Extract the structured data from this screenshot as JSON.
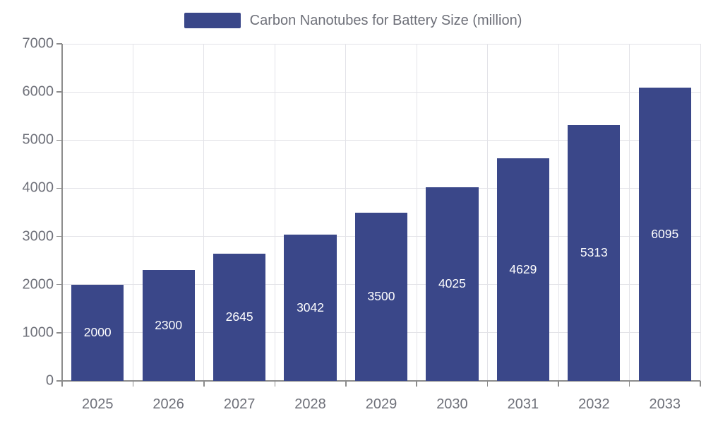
{
  "chart_data": {
    "type": "bar",
    "title": "Carbon Nanotubes for Battery Size (million)",
    "legend": {
      "position": "top-center",
      "entries": [
        "Carbon Nanotubes for Battery Size (million)"
      ]
    },
    "categories": [
      "2025",
      "2026",
      "2027",
      "2028",
      "2029",
      "2030",
      "2031",
      "2032",
      "2033"
    ],
    "series": [
      {
        "name": "Carbon Nanotubes for Battery Size (million)",
        "values": [
          2000,
          2300,
          2645,
          3042,
          3500,
          4025,
          4629,
          5313,
          6095
        ]
      }
    ],
    "xlabel": "",
    "ylabel": "",
    "ylim": [
      0,
      7000
    ],
    "ytick_step": 1000,
    "yticks": [
      0,
      1000,
      2000,
      3000,
      4000,
      5000,
      6000,
      7000
    ],
    "grid": true,
    "bar_label_position": "inside-center"
  },
  "style": {
    "bar_color": "#3A4789",
    "bar_label_color": "#FFFFFF",
    "axis_line_color": "#8C8C8C",
    "grid_line_color": "#E3E3E8",
    "tick_label_color": "#6E7079",
    "legend_text_color": "#6E7079",
    "background_color": "#FFFFFF"
  }
}
